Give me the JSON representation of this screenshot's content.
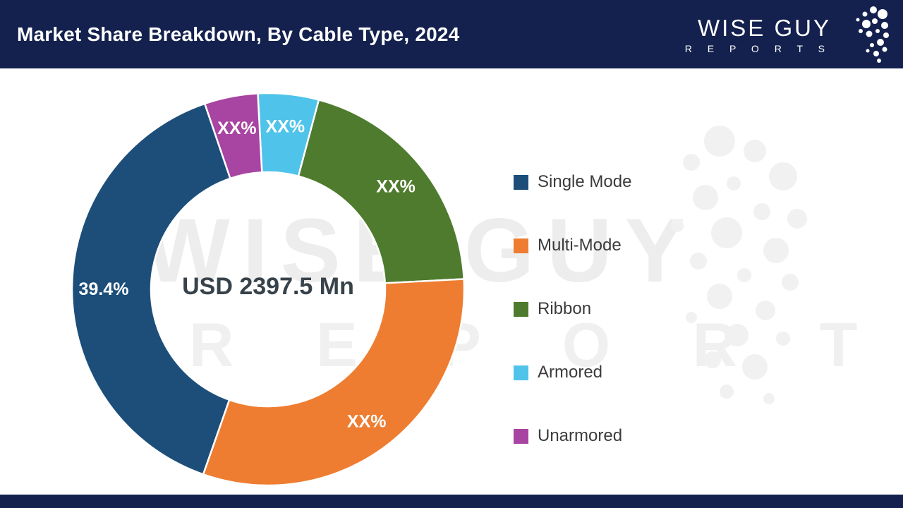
{
  "header": {
    "title": "Market Share Breakdown, By Cable Type, 2024",
    "logo_line1": "WISE GUY",
    "logo_line2": "R E P O R T S"
  },
  "watermark": {
    "line1": "WISE GUY",
    "line2": "R E P O R T S"
  },
  "chart_data": {
    "type": "pie",
    "subtype": "donut",
    "title": "Market Share Breakdown, By Cable Type, 2024",
    "center_label": "USD 2397.5 Mn",
    "legend_position": "right",
    "start_angle_deg": -3,
    "slice_order_clockwise": [
      "Armored",
      "Ribbon",
      "Multi-Mode",
      "Single Mode",
      "Unarmored"
    ],
    "series": [
      {
        "name": "Single Mode",
        "value": 39.4,
        "label": "39.4%",
        "color": "#1c4e79"
      },
      {
        "name": "Multi-Mode",
        "value": 31.2,
        "label": "XX%",
        "color": "#ee7d31"
      },
      {
        "name": "Ribbon",
        "value": 20.0,
        "label": "XX%",
        "color": "#4e7b2d"
      },
      {
        "name": "Armored",
        "value": 5.0,
        "label": "XX%",
        "color": "#4fc3ea"
      },
      {
        "name": "Unarmored",
        "value": 4.4,
        "label": "XX%",
        "color": "#a844a1"
      }
    ]
  }
}
